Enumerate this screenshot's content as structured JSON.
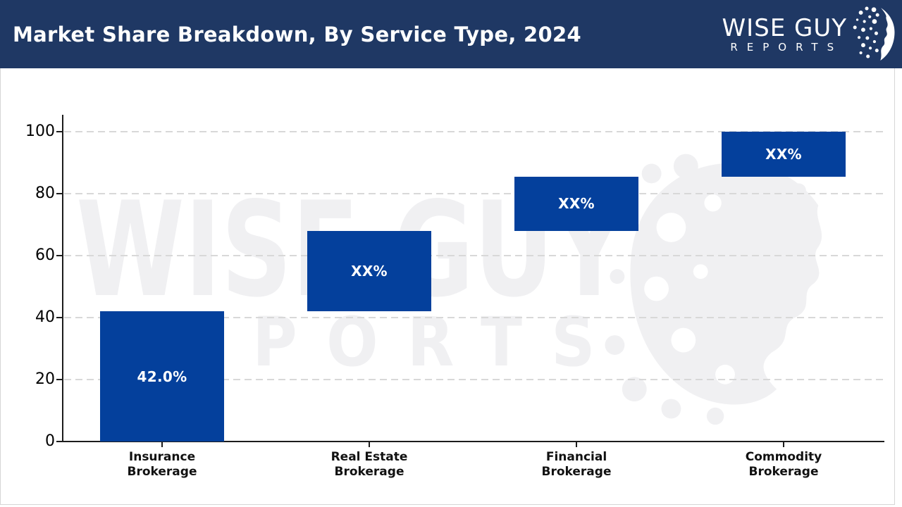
{
  "header": {
    "title": "Market Share Breakdown, By Service Type, 2024",
    "bg_color": "#1F3864",
    "logo": {
      "line1": "WISE GUY",
      "line2": "REPORTS"
    }
  },
  "watermark": {
    "line1": "WISE GUY",
    "line2": "REPORTS"
  },
  "chart_data": {
    "type": "bar",
    "variant": "waterfall",
    "title": "Market Share Breakdown, By Service Type, 2024",
    "categories": [
      [
        "Insurance",
        "Brokerage"
      ],
      [
        "Real Estate",
        "Brokerage"
      ],
      [
        "Financial",
        "Brokerage"
      ],
      [
        "Commodity",
        "Brokerage"
      ]
    ],
    "segments": [
      {
        "category": "Insurance Brokerage",
        "start": 0,
        "end": 42,
        "label": "42.0%"
      },
      {
        "category": "Real Estate Brokerage",
        "start": 42,
        "end": 68,
        "label": "XX%"
      },
      {
        "category": "Financial Brokerage",
        "start": 68,
        "end": 85.5,
        "label": "XX%"
      },
      {
        "category": "Commodity Brokerage",
        "start": 85.5,
        "end": 100,
        "label": "XX%"
      }
    ],
    "ylim": [
      0,
      105.5
    ],
    "yticks": [
      0,
      20,
      40,
      60,
      80,
      100
    ],
    "grid": {
      "axis": "y",
      "style": "dashed",
      "color": "#d8d8d8"
    },
    "legend": "none",
    "bar_color": "#04409C",
    "bar_label_color": "#FFFFFF",
    "axis_color": "#1c1c1c",
    "tick_label_color": "#000000",
    "watermark_color": "#f0f0f2"
  }
}
